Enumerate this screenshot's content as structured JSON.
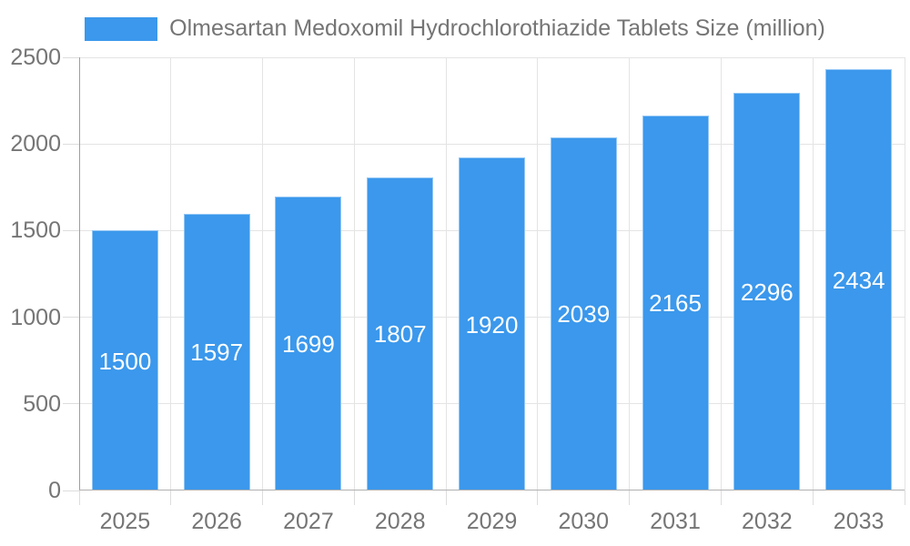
{
  "legend": {
    "swatch_color": "#3b98ec"
  },
  "colors": {
    "bar_fill": "#3b98ec",
    "bar_edge_highlight": "rgba(255,255,255,0.45)",
    "gridline": "#e4e4e4",
    "tick": "#dddddd",
    "y_axis_line": "#9e9e9e",
    "x_baseline": "#b0b0b0",
    "axis_text": "#757575",
    "bar_label_text": "#ffffff"
  },
  "chart_data": {
    "type": "bar",
    "title": "Olmesartan Medoxomil Hydrochlorothiazide Tablets Size (million)",
    "categories": [
      "2025",
      "2026",
      "2027",
      "2028",
      "2029",
      "2030",
      "2031",
      "2032",
      "2033"
    ],
    "values": [
      1500,
      1597,
      1699,
      1807,
      1920,
      2039,
      2165,
      2296,
      2434
    ],
    "series": [
      {
        "name": "Olmesartan Medoxomil Hydrochlorothiazide Tablets Size (million)",
        "values": [
          1500,
          1597,
          1699,
          1807,
          1920,
          2039,
          2165,
          2296,
          2434
        ]
      }
    ],
    "xlabel": "",
    "ylabel": "",
    "ylim": [
      0,
      2500
    ],
    "yticks": [
      0,
      500,
      1000,
      1500,
      2000,
      2500
    ],
    "grid": true,
    "legend_position": "top",
    "bar_labels_visible": true
  }
}
